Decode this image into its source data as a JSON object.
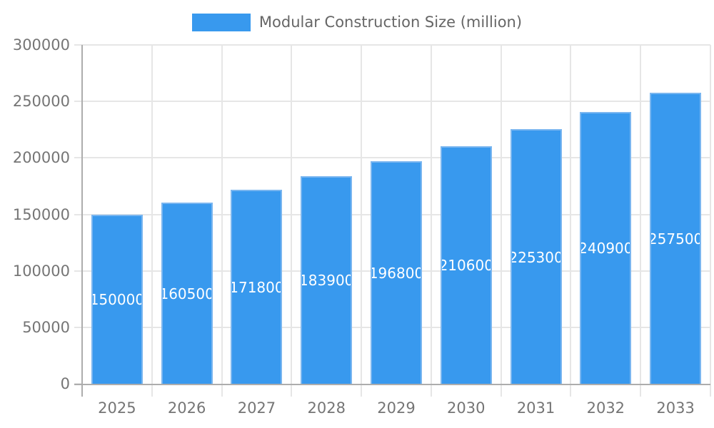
{
  "legend": {
    "label": "Modular Construction Size (million)"
  },
  "chart_data": {
    "type": "bar",
    "title": "",
    "categories": [
      "2025",
      "2026",
      "2027",
      "2028",
      "2029",
      "2030",
      "2031",
      "2032",
      "2033"
    ],
    "series": [
      {
        "name": "Modular Construction Size (million)",
        "values": [
          150000,
          160500,
          171800,
          183900,
          196800,
          210600,
          225300,
          240900,
          257500
        ]
      }
    ],
    "value_labels": [
      "150000",
      "160500",
      "171800",
      "183900",
      "196800",
      "210600",
      "225300",
      "240900",
      "257500"
    ],
    "xlabel": "",
    "ylabel": "",
    "ylim": [
      0,
      300000
    ],
    "yticks": [
      0,
      50000,
      100000,
      150000,
      200000,
      250000,
      300000
    ],
    "ytick_labels": [
      "0",
      "50000",
      "100000",
      "150000",
      "200000",
      "250000",
      "300000"
    ],
    "grid": true,
    "legend_position": "top-center",
    "value_label_position": "inside-center",
    "colors": {
      "bar_fill": "#3899ee",
      "bar_border": "#7ab6f0",
      "gridline": "#e6e6e6",
      "axis_line": "#adadad",
      "axis_text": "#757575",
      "legend_text": "#666666",
      "value_text": "#ffffff",
      "background": "#ffffff"
    }
  }
}
